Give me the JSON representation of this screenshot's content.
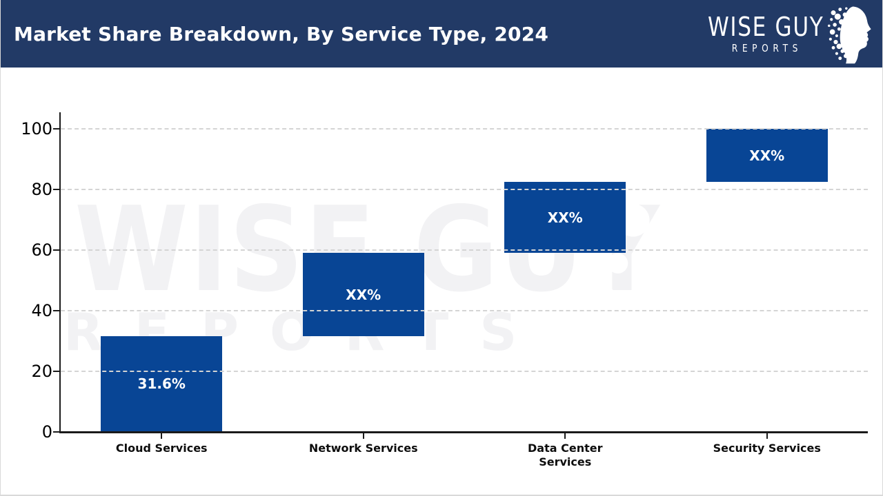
{
  "header": {
    "title": "Market Share Breakdown, By Service Type, 2024",
    "logo": {
      "line1": "WISE GUY",
      "line2": "REPORTS"
    }
  },
  "watermark": {
    "line1": "WISE GUY",
    "line2": "REPORTS"
  },
  "colors": {
    "header_bg": "#223a66",
    "bar_blue": "#084595",
    "gridline": "#d4d4d4",
    "watermark_gray": "#f2f2f4",
    "axis_black": "#1a1a1a",
    "label_white": "#ffffff"
  },
  "chart_data": {
    "type": "bar",
    "subtype": "waterfall",
    "title": "Market Share Breakdown, By Service Type, 2024",
    "xlabel": "",
    "ylabel": "",
    "categories": [
      "Cloud Services",
      "Network Services",
      "Data Center Services",
      "Security Services"
    ],
    "category_display": [
      [
        "Cloud Services"
      ],
      [
        "Network Services"
      ],
      [
        "Data Center",
        "Services"
      ],
      [
        "Security Services"
      ]
    ],
    "segments": [
      {
        "start": 0,
        "end": 31.6,
        "value": 31.6,
        "label": "31.6%"
      },
      {
        "start": 31.6,
        "end": 59.0,
        "value": 27.4,
        "label": "XX%"
      },
      {
        "start": 59.0,
        "end": 82.4,
        "value": 23.4,
        "label": "XX%"
      },
      {
        "start": 82.4,
        "end": 100,
        "value": 17.6,
        "label": "XX%"
      }
    ],
    "yticks": [
      0,
      20,
      40,
      60,
      80,
      100
    ],
    "ytick_labels": [
      "0",
      "20",
      "40",
      "60",
      "80",
      "100"
    ],
    "ylim": [
      0,
      105.5
    ],
    "grid": "horizontal-dashed",
    "legend": "none",
    "bar_color": "#084595",
    "bar_label_color": "#ffffff"
  }
}
